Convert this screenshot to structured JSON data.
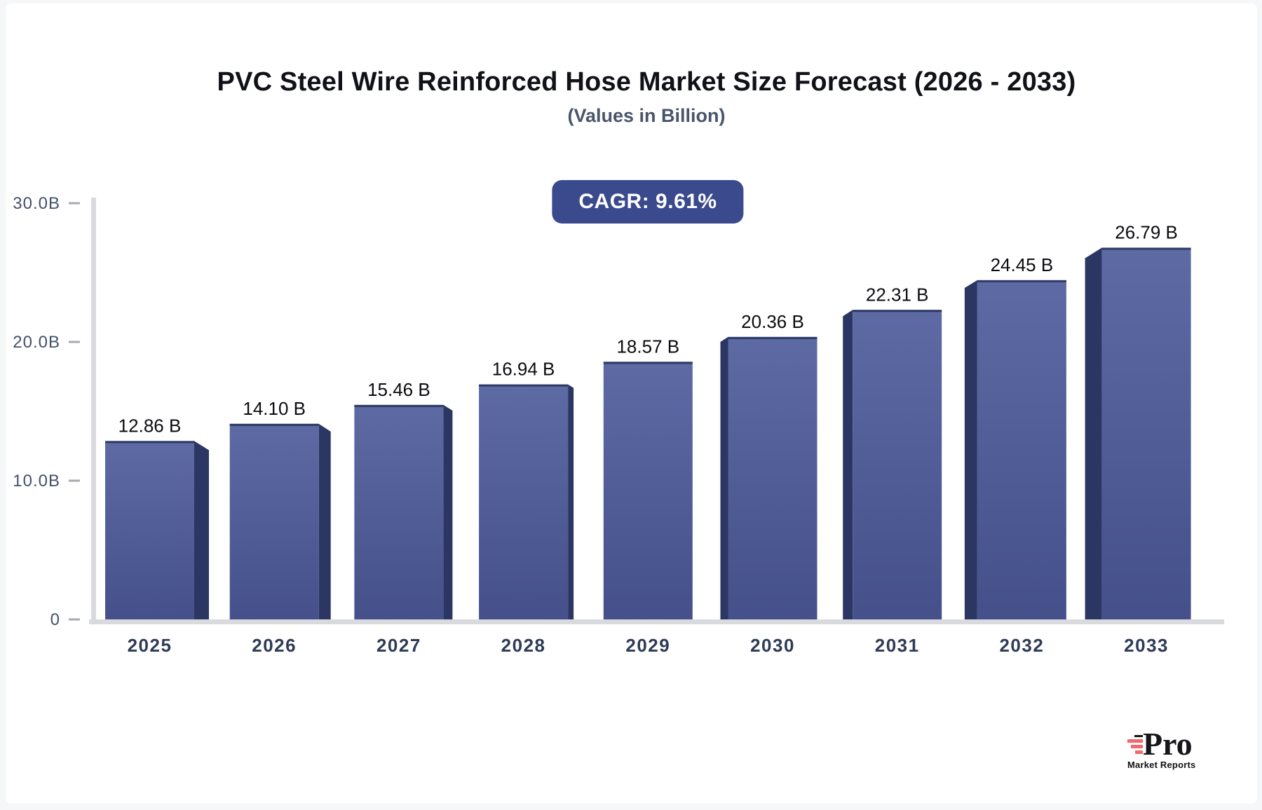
{
  "header": {
    "title": "PVC Steel Wire Reinforced Hose Market Size Forecast (2026 - 2033)",
    "subtitle": "(Values in Billion)"
  },
  "cagr_badge": {
    "label": "CAGR: 9.61%",
    "bg_color": "#3a4a8d",
    "text_color": "#ffffff"
  },
  "chart_data": {
    "type": "bar",
    "title": "PVC Steel Wire Reinforced Hose Market Size Forecast (2026 - 2033)",
    "subtitle": "(Values in Billion)",
    "unit": "Billion",
    "style_3d": true,
    "grid": false,
    "legend": false,
    "categories": [
      "2025",
      "2026",
      "2027",
      "2028",
      "2029",
      "2030",
      "2031",
      "2032",
      "2033"
    ],
    "values": [
      12.86,
      14.1,
      15.46,
      16.94,
      18.57,
      20.36,
      22.31,
      24.45,
      26.79
    ],
    "value_labels": [
      "12.86 B",
      "14.10 B",
      "15.46 B",
      "16.94 B",
      "18.57 B",
      "20.36 B",
      "22.31 B",
      "24.45 B",
      "26.79 B"
    ],
    "y_ticks": [
      {
        "label": "0",
        "value": 0
      },
      {
        "label": "10.0B",
        "value": 10
      },
      {
        "label": "20.0B",
        "value": 20
      },
      {
        "label": "30.0B",
        "value": 30
      }
    ],
    "ylim": [
      0,
      30
    ],
    "colors": {
      "bar_face_top": "#5d6aa3",
      "bar_face_bottom": "#45508a",
      "bar_side": "#2c3663",
      "bar_top_edge": "#2e3965",
      "axis": "#d9dade",
      "tick_dash": "#a8a8b0",
      "y_tick_label": "#44516b",
      "x_tick_label": "#2e3a57",
      "value_label": "#0c0c10"
    }
  },
  "logo": {
    "name": "Pro",
    "tagline": "Market Reports",
    "accent_color": "#f2686c"
  }
}
